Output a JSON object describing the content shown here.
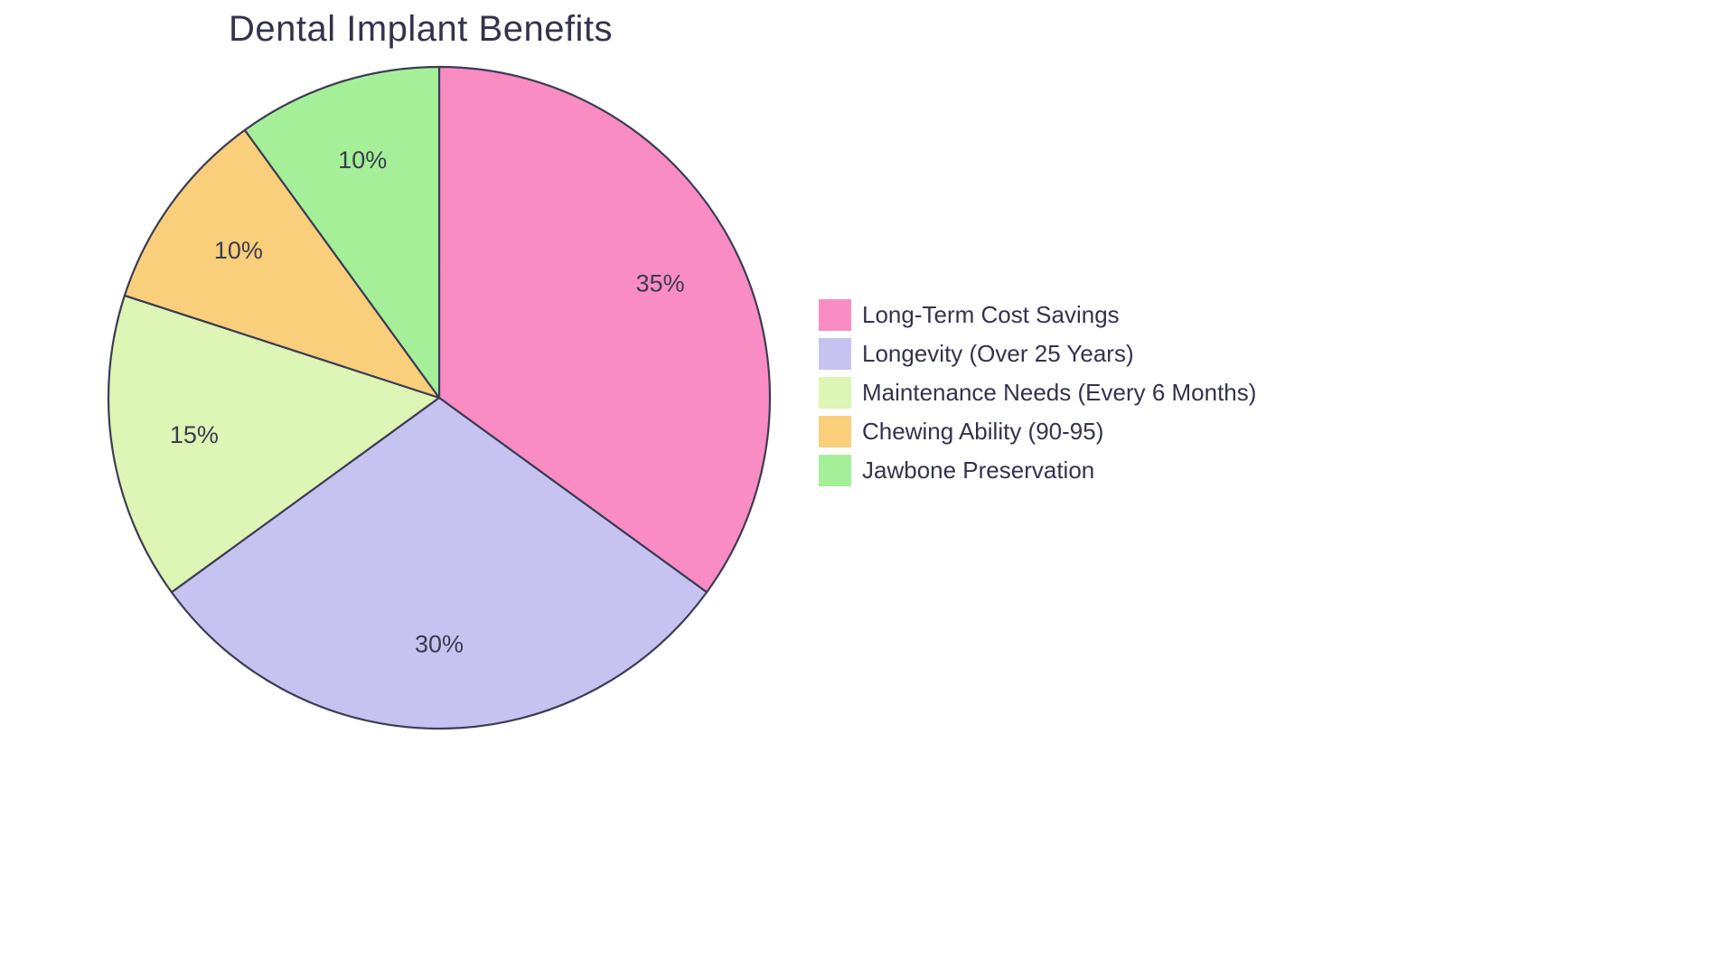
{
  "title": "Dental Implant Benefits",
  "chart_data": {
    "type": "pie",
    "title": "Dental Implant Benefits",
    "direction": "clockwise",
    "start_angle_deg": 0,
    "legend_position": "right",
    "stroke_color": "#3C3C55",
    "label_color": "#3B3B4F",
    "slices": [
      {
        "label": "Long-Term Cost Savings",
        "value": 35,
        "pct_label": "35%",
        "color": "#F98CC3"
      },
      {
        "label": "Longevity (Over 25 Years)",
        "value": 30,
        "pct_label": "30%",
        "color": "#C7C3F1"
      },
      {
        "label": "Maintenance Needs (Every 6 Months)",
        "value": 15,
        "pct_label": "15%",
        "color": "#DDF5B5"
      },
      {
        "label": "Chewing Ability (90-95)",
        "value": 10,
        "pct_label": "10%",
        "color": "#F9CF7C"
      },
      {
        "label": "Jawbone Preservation",
        "value": 10,
        "pct_label": "10%",
        "color": "#A6EF99"
      }
    ]
  }
}
